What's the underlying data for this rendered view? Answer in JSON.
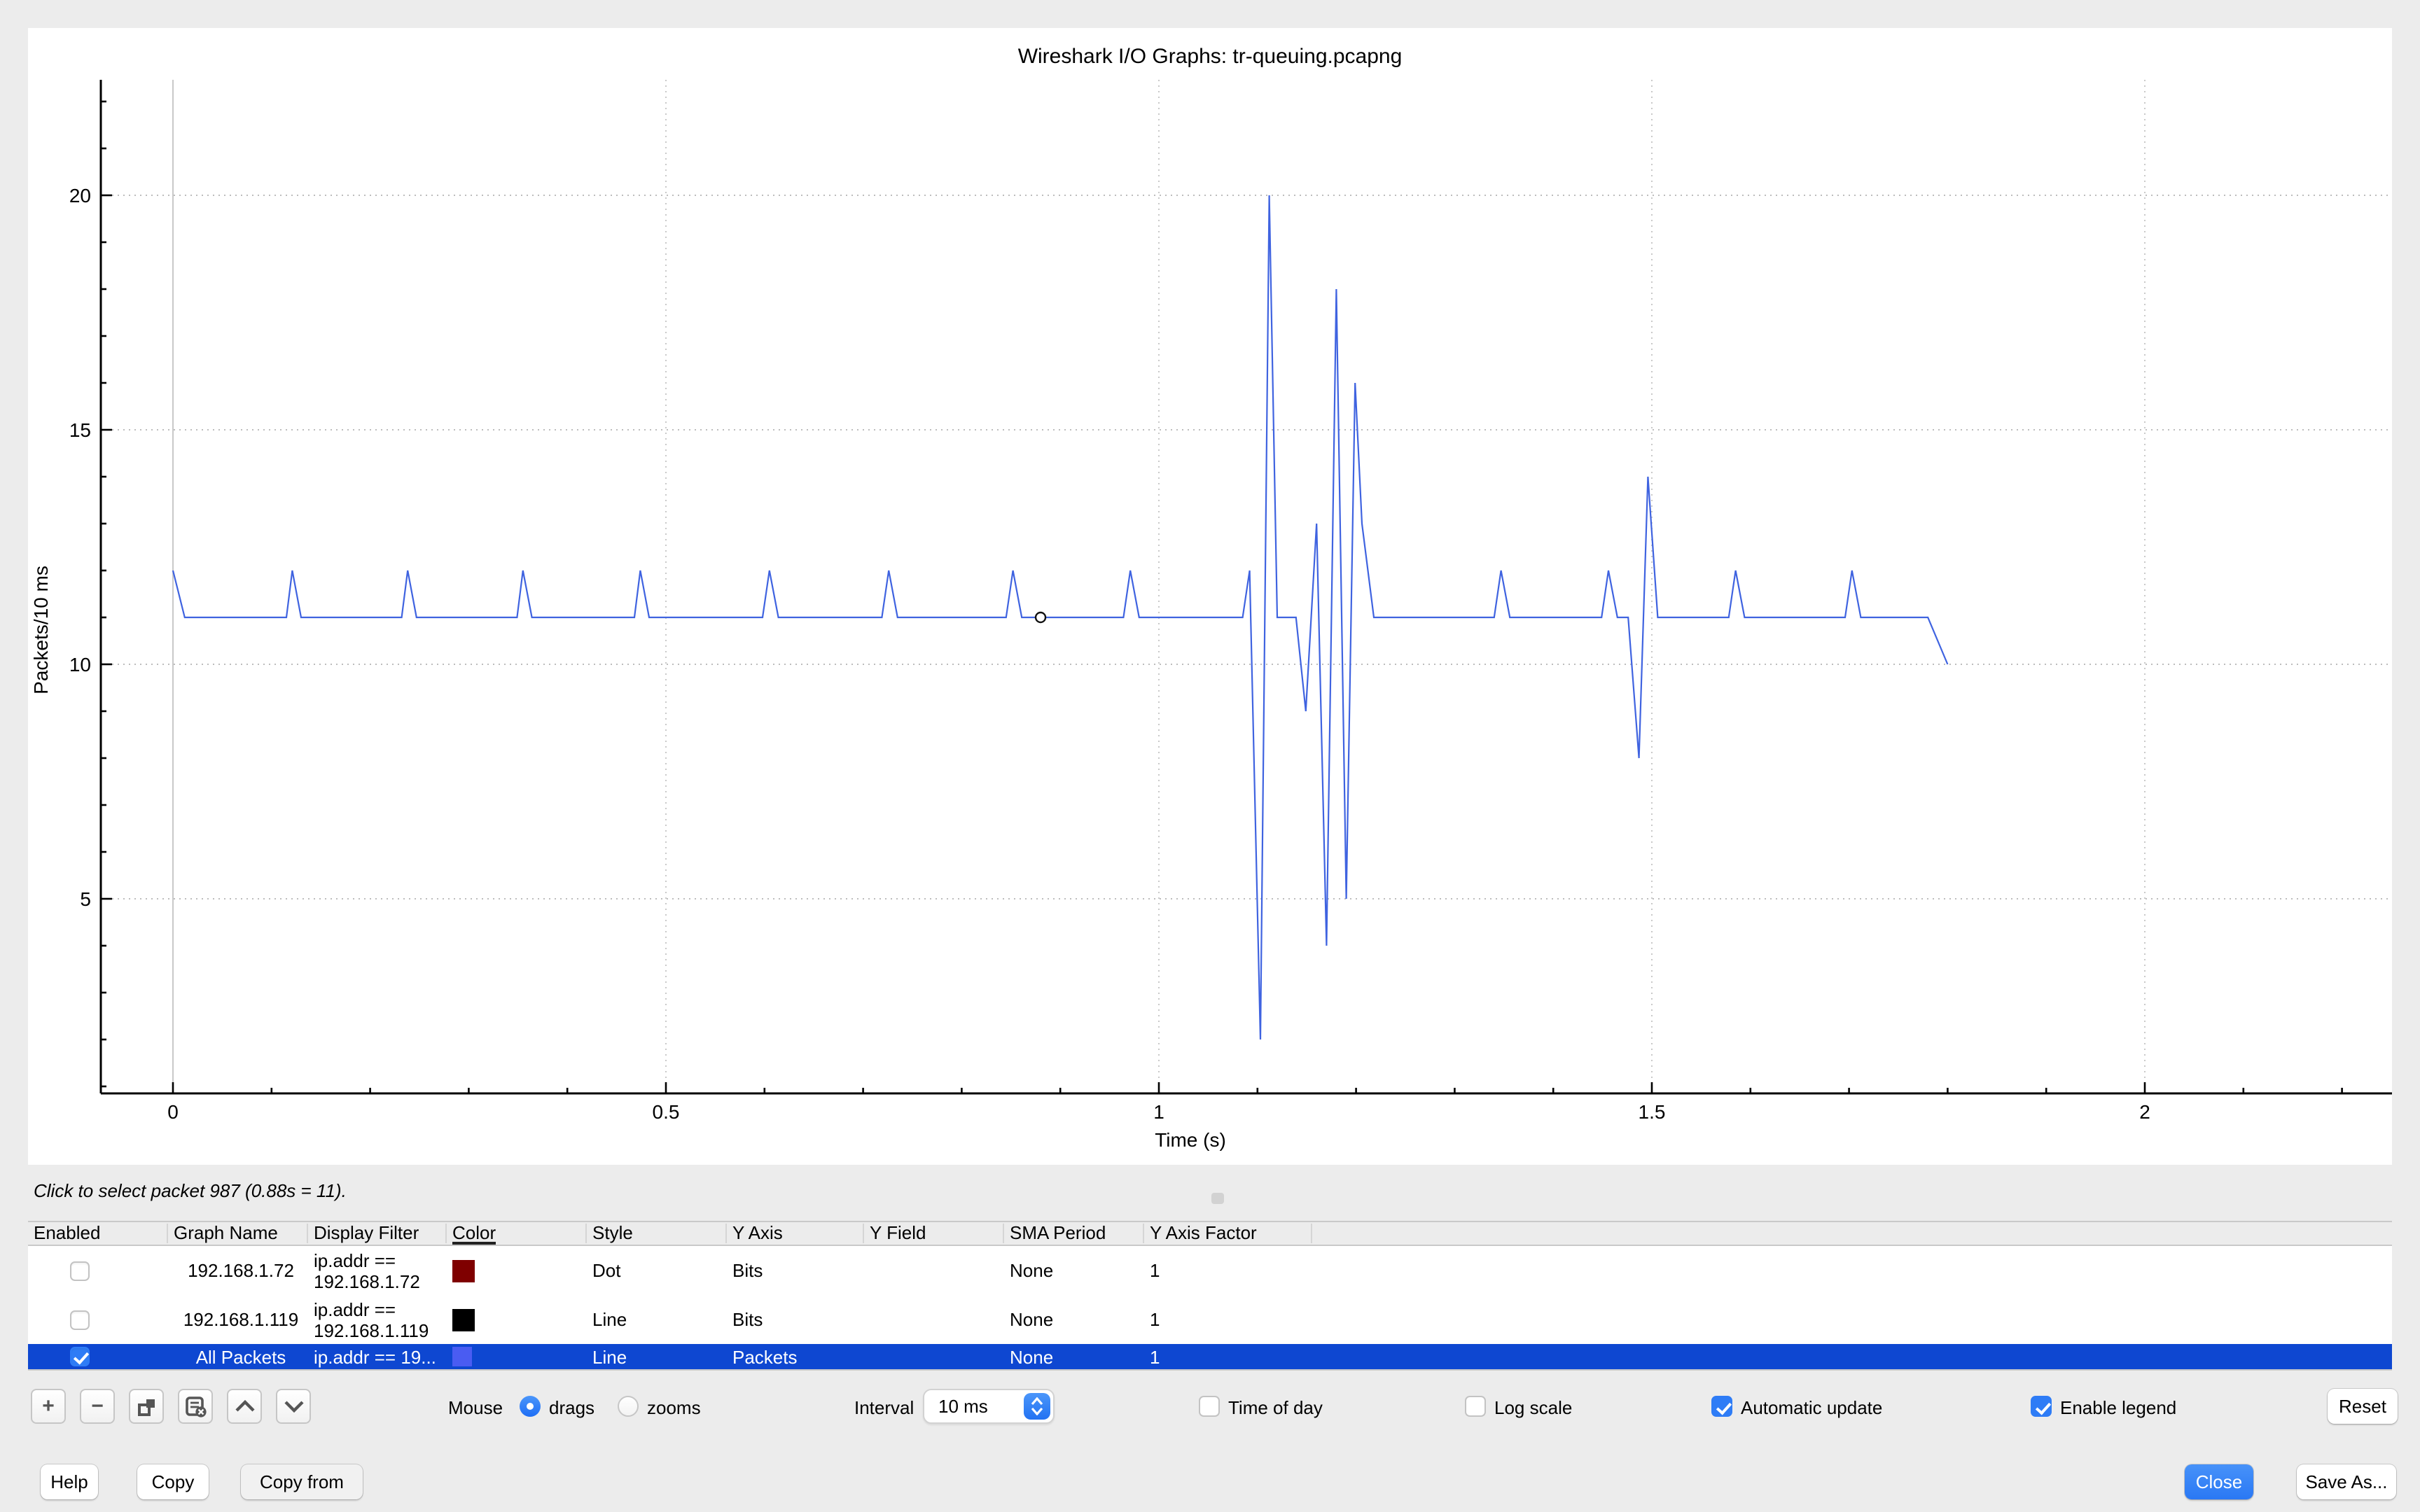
{
  "window": {
    "title": "Wireshark I/O Graphs: tr-queuing.pcapng"
  },
  "status_text": "Click to select packet 987 (0.88s = 11).",
  "chart_data": {
    "type": "line",
    "title": "Wireshark I/O Graphs: tr-queuing.pcapng",
    "xlabel": "Time (s)",
    "ylabel": "Packets/10 ms",
    "xlim": [
      -0.073,
      2.25
    ],
    "ylim": [
      0.85,
      22.46
    ],
    "x_major_ticks": [
      0,
      0.5,
      1,
      1.5,
      2
    ],
    "x_tick_labels": [
      "0",
      "0.5",
      "1",
      "1.5",
      "2"
    ],
    "x_minor_step": 0.1,
    "x_minor_range": [
      0,
      2.2
    ],
    "y_major_ticks": [
      5,
      10,
      15,
      20
    ],
    "y_tick_labels": [
      "5",
      "10",
      "15",
      "20"
    ],
    "y_minor_step": 1,
    "y_minor_range": [
      1,
      22
    ],
    "grid": "dotted",
    "legend": "off",
    "line_color": "#3f63e0",
    "series_name": "All Packets",
    "points": [
      [
        0.0,
        12
      ],
      [
        0.012,
        11
      ],
      [
        0.115,
        11
      ],
      [
        0.121,
        12
      ],
      [
        0.13,
        11
      ],
      [
        0.232,
        11
      ],
      [
        0.238,
        12
      ],
      [
        0.247,
        11
      ],
      [
        0.349,
        11
      ],
      [
        0.355,
        12
      ],
      [
        0.364,
        11
      ],
      [
        0.468,
        11
      ],
      [
        0.474,
        12
      ],
      [
        0.483,
        11
      ],
      [
        0.598,
        11
      ],
      [
        0.605,
        12
      ],
      [
        0.614,
        11
      ],
      [
        0.719,
        11
      ],
      [
        0.726,
        12
      ],
      [
        0.735,
        11
      ],
      [
        0.845,
        11
      ],
      [
        0.852,
        12
      ],
      [
        0.861,
        11
      ],
      [
        0.964,
        11
      ],
      [
        0.971,
        12
      ],
      [
        0.98,
        11
      ],
      [
        1.085,
        11
      ],
      [
        1.092,
        12
      ],
      [
        1.103,
        2
      ],
      [
        1.112,
        20
      ],
      [
        1.12,
        11
      ],
      [
        1.139,
        11
      ],
      [
        1.149,
        9
      ],
      [
        1.16,
        13
      ],
      [
        1.17,
        4
      ],
      [
        1.18,
        18
      ],
      [
        1.19,
        5
      ],
      [
        1.199,
        16
      ],
      [
        1.206,
        13
      ],
      [
        1.218,
        11
      ],
      [
        1.34,
        11
      ],
      [
        1.347,
        12
      ],
      [
        1.356,
        11
      ],
      [
        1.449,
        11
      ],
      [
        1.456,
        12
      ],
      [
        1.465,
        11
      ],
      [
        1.476,
        11
      ],
      [
        1.487,
        8
      ],
      [
        1.496,
        14
      ],
      [
        1.506,
        11
      ],
      [
        1.578,
        11
      ],
      [
        1.585,
        12
      ],
      [
        1.594,
        11
      ],
      [
        1.696,
        11
      ],
      [
        1.703,
        12
      ],
      [
        1.712,
        11
      ],
      [
        1.78,
        11
      ],
      [
        1.8,
        10
      ]
    ],
    "hover_point": {
      "x": 0.88,
      "y": 11
    }
  },
  "table": {
    "headers": [
      "Enabled",
      "Graph Name",
      "Display Filter",
      "Color",
      "Style",
      "Y Axis",
      "Y Field",
      "SMA Period",
      "Y Axis Factor"
    ],
    "sorted_column_index": 3,
    "rows": [
      {
        "enabled": false,
        "name": "192.168.1.72",
        "filter": "ip.addr ==\n192.168.1.72",
        "color": "#7f0000",
        "style": "Dot",
        "y_axis": "Bits",
        "y_field": "",
        "sma_period": "None",
        "y_axis_factor": "1",
        "selected": false
      },
      {
        "enabled": false,
        "name": "192.168.1.119",
        "filter": "ip.addr ==\n192.168.1.119",
        "color": "#000000",
        "style": "Line",
        "y_axis": "Bits",
        "y_field": "",
        "sma_period": "None",
        "y_axis_factor": "1",
        "selected": false
      },
      {
        "enabled": true,
        "name": "All Packets",
        "filter": "ip.addr == 19...",
        "color": "#4a5cf2",
        "style": "Line",
        "y_axis": "Packets",
        "y_field": "",
        "sma_period": "None",
        "y_axis_factor": "1",
        "selected": true
      }
    ]
  },
  "toolbar": {
    "buttons": [
      "add",
      "remove",
      "duplicate",
      "clear",
      "move-up",
      "move-down"
    ]
  },
  "controls": {
    "mouse_label": "Mouse",
    "radios": [
      {
        "label": "drags",
        "selected": true
      },
      {
        "label": "zooms",
        "selected": false
      }
    ],
    "interval_label": "Interval",
    "interval_value": "10 ms",
    "checkboxes": [
      {
        "label": "Time of day",
        "checked": false
      },
      {
        "label": "Log scale",
        "checked": false
      },
      {
        "label": "Automatic update",
        "checked": true
      },
      {
        "label": "Enable legend",
        "checked": true
      }
    ],
    "reset_label": "Reset"
  },
  "footer": {
    "help": "Help",
    "copy": "Copy",
    "copy_from": "Copy from",
    "close": "Close",
    "save_as": "Save As..."
  },
  "colors": {
    "selection_blue": "#0e47d1",
    "accent_blue": "#2e7cf6",
    "line_blue": "#3f63e0",
    "panel_gray": "#ececec",
    "grid_gray": "#bdbdbd"
  }
}
